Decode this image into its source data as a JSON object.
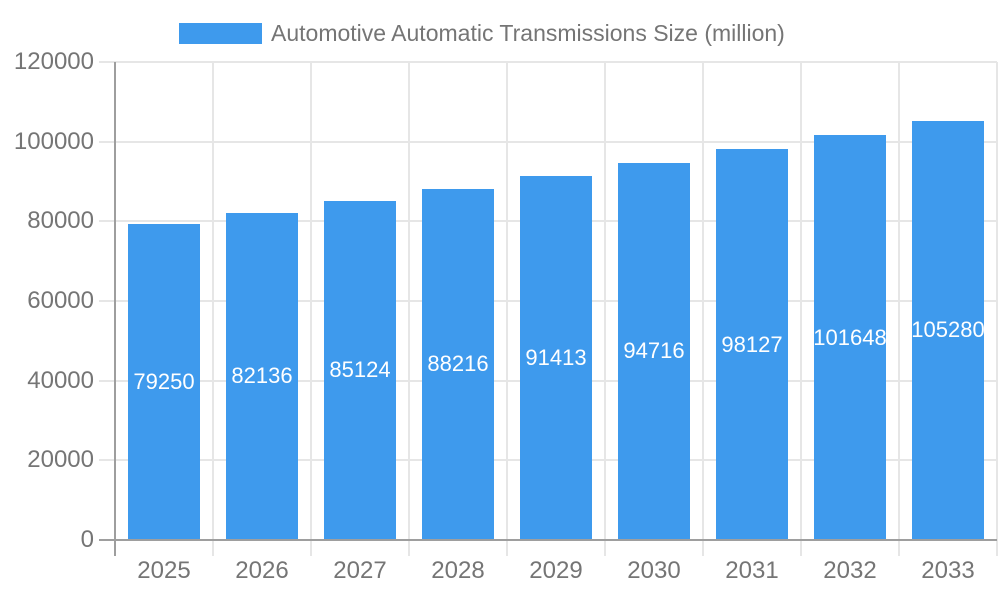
{
  "legend": {
    "label": "Automotive Automatic Transmissions Size (million)",
    "swatch_color": "#3E9AED"
  },
  "chart_data": {
    "type": "bar",
    "title": "Automotive Automatic Transmissions Size (million)",
    "categories": [
      "2025",
      "2026",
      "2027",
      "2028",
      "2029",
      "2030",
      "2031",
      "2032",
      "2033"
    ],
    "series": [
      {
        "name": "Automotive Automatic Transmissions Size (million)",
        "values": [
          79250,
          82136,
          85124,
          88216,
          91413,
          94716,
          98127,
          101648,
          105280
        ]
      }
    ],
    "xlabel": "",
    "ylabel": "",
    "ylim": [
      0,
      120000
    ],
    "yticks": [
      0,
      20000,
      40000,
      60000,
      80000,
      100000,
      120000
    ],
    "grid": true,
    "legend_position": "top",
    "value_labels_shown": true,
    "colors": {
      "bar": "#3E9AED",
      "grid": "#e6e6e6",
      "axis": "#9e9e9e",
      "tick_text": "#757575",
      "value_text": "#ffffff",
      "background": "#ffffff"
    }
  }
}
